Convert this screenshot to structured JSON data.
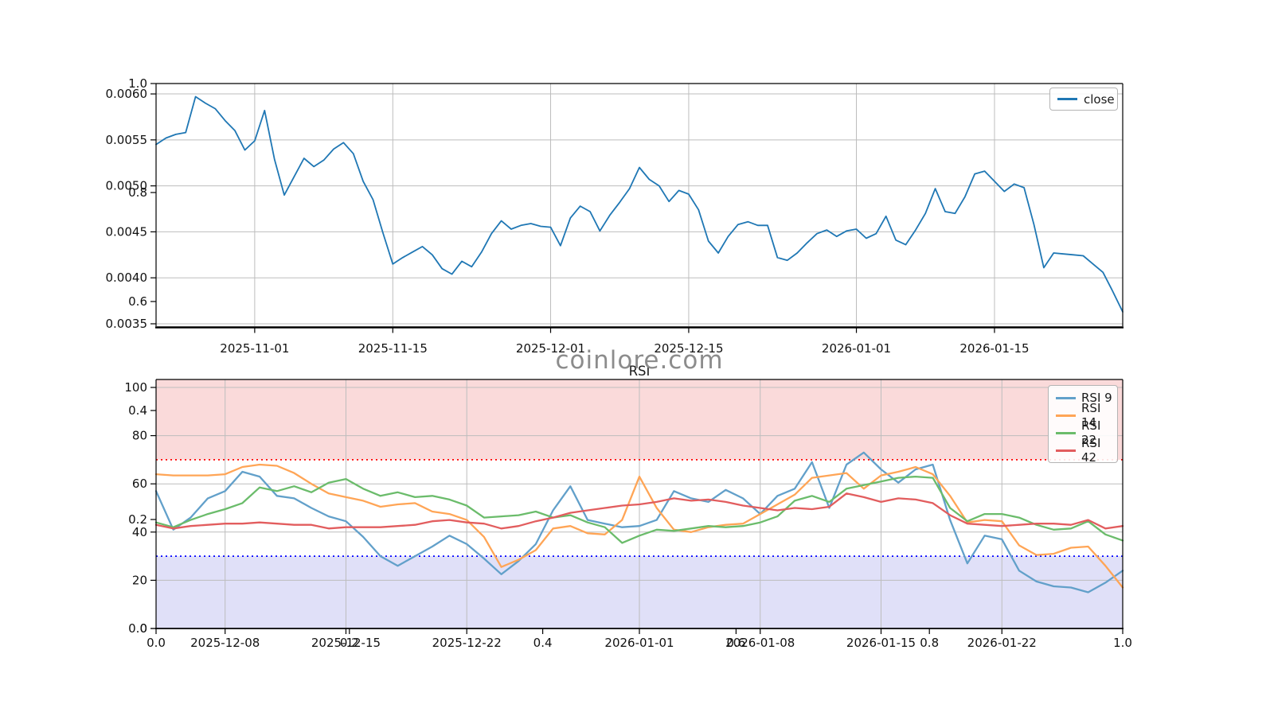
{
  "watermark": "coinlore.com",
  "legend_close_label": "close",
  "legend_rsi_labels": [
    "RSI 9",
    "RSI 14",
    "RSI 22",
    "RSI 42"
  ],
  "background_axis": {
    "x_tick_labels": [
      "0.0",
      "0.2",
      "0.4",
      "0.6",
      "0.8",
      "1.0"
    ],
    "y_tick_labels": [
      "1.0",
      "0.8",
      "0.6",
      "0.4",
      "0.2",
      "0.0"
    ]
  },
  "chart_data": [
    {
      "type": "line",
      "title": "",
      "xlabel": "",
      "ylabel": "",
      "grid": true,
      "legend_position": "upper right",
      "x_tick_labels": [
        "2025-11-01",
        "2025-11-15",
        "2025-12-01",
        "2025-12-15",
        "2026-01-01",
        "2026-01-15"
      ],
      "x_tick_indices": [
        10,
        24,
        40,
        54,
        71,
        85
      ],
      "x_range_dates": [
        "2025-10-22",
        "2026-01-28"
      ],
      "y_tick_labels": [
        "0.0060",
        "0.0055",
        "0.0050",
        "0.0045",
        "0.0040",
        "0.0035"
      ],
      "y_tick_values": [
        0.006,
        0.0055,
        0.005,
        0.0045,
        0.004,
        0.0035
      ],
      "ylim": [
        0.003474,
        0.006113
      ],
      "series": [
        {
          "name": "close",
          "color": "#1f77b4",
          "values": [
            0.00545,
            0.00552,
            0.00556,
            0.00558,
            0.00597,
            0.0059,
            0.00584,
            0.00571,
            0.0056,
            0.00539,
            0.00549,
            0.00582,
            0.00529,
            0.0049,
            0.0051,
            0.0053,
            0.00521,
            0.00528,
            0.0054,
            0.00547,
            0.00535,
            0.00505,
            0.00485,
            0.00449,
            0.00415,
            0.00422,
            0.00428,
            0.00434,
            0.00425,
            0.0041,
            0.00404,
            0.00418,
            0.00412,
            0.00428,
            0.00448,
            0.00462,
            0.00453,
            0.00457,
            0.00459,
            0.00456,
            0.00455,
            0.00435,
            0.00465,
            0.00478,
            0.00472,
            0.00451,
            0.00468,
            0.00482,
            0.00497,
            0.0052,
            0.00507,
            0.005,
            0.00483,
            0.00495,
            0.00491,
            0.00474,
            0.0044,
            0.00427,
            0.00445,
            0.00458,
            0.00461,
            0.00457,
            0.00457,
            0.00422,
            0.00419,
            0.00427,
            0.00438,
            0.00448,
            0.00452,
            0.00445,
            0.00451,
            0.00453,
            0.00443,
            0.00448,
            0.00467,
            0.00441,
            0.00436,
            0.00452,
            0.0047,
            0.00497,
            0.00472,
            0.0047,
            0.00488,
            0.00513,
            0.00516,
            0.00505,
            0.00494,
            0.00502,
            0.00498,
            0.00458,
            0.00411,
            0.00427,
            0.00426,
            0.00425,
            0.00424,
            0.00415,
            0.00406,
            0.00385,
            0.00363
          ]
        }
      ]
    },
    {
      "type": "line",
      "title": "RSI",
      "xlabel": "",
      "ylabel": "",
      "grid": true,
      "legend_position": "upper right",
      "x_tick_labels": [
        "2025-12-08",
        "2025-12-15",
        "2025-12-22",
        "2026-01-01",
        "2026-01-08",
        "2026-01-15",
        "2026-01-22"
      ],
      "x_tick_indices": [
        4,
        11,
        18,
        28,
        35,
        42,
        49
      ],
      "x_range_dates": [
        "2025-12-04",
        "2026-01-29"
      ],
      "y_tick_labels": [
        "100",
        "80",
        "60",
        "40",
        "20",
        "0"
      ],
      "y_tick_values": [
        100,
        80,
        60,
        40,
        20,
        0
      ],
      "ylim": [
        0,
        103.3
      ],
      "overbought_level": 70,
      "oversold_level": 30,
      "overbought_line_color": "#ff0000",
      "oversold_line_color": "#0000ff",
      "overbought_band_color": "#fadada",
      "oversold_band_color": "#e0e0f8",
      "series": [
        {
          "name": "RSI 9",
          "color": "#62a0ca",
          "values": [
            57,
            41,
            46,
            54,
            57,
            65,
            63,
            55,
            54,
            50,
            46.5,
            44.5,
            38,
            30,
            26,
            30,
            34,
            38.5,
            35,
            29,
            22.5,
            28,
            35,
            49,
            59,
            45,
            43.5,
            42,
            42.5,
            45,
            57,
            54,
            52.5,
            57.5,
            54,
            47.5,
            55,
            58,
            69,
            50,
            68,
            73,
            66,
            60.5,
            66,
            68,
            45,
            27,
            38.5,
            37,
            24,
            19.5,
            17.5,
            17,
            15,
            19,
            24
          ]
        },
        {
          "name": "RSI 14",
          "color": "#ffa556",
          "values": [
            64,
            63.5,
            63.5,
            63.5,
            64,
            67,
            68,
            67.5,
            64.5,
            60,
            56,
            54.5,
            53,
            50.5,
            51.5,
            52,
            48.5,
            47.5,
            45,
            38,
            25.5,
            28.5,
            32.5,
            41.5,
            42.5,
            39.5,
            39,
            45,
            63,
            50,
            41,
            40,
            42,
            43,
            43.5,
            47.5,
            51.5,
            55.5,
            62.5,
            63.5,
            64.5,
            58,
            63.5,
            65,
            67,
            64,
            55,
            44,
            45,
            44.5,
            34.5,
            30.5,
            31,
            33.5,
            34,
            26,
            17
          ]
        },
        {
          "name": "RSI 22",
          "color": "#6bbc6b",
          "values": [
            44,
            42,
            45,
            47.5,
            49.5,
            52,
            58.5,
            57,
            59,
            56.5,
            60.5,
            62,
            58,
            55,
            56.5,
            54.5,
            55,
            53.5,
            51,
            46,
            46.5,
            47,
            48.5,
            46,
            47,
            44,
            42,
            35.5,
            38.5,
            41,
            40.5,
            41.5,
            42.5,
            42,
            42.5,
            44,
            46.5,
            53,
            55,
            52.5,
            58,
            59.5,
            61,
            62.5,
            63,
            62.5,
            50,
            44.5,
            47.5,
            47.5,
            46,
            43,
            41,
            41.5,
            44.5,
            39,
            36.5
          ]
        },
        {
          "name": "RSI 42",
          "color": "#e25d5e",
          "values": [
            43,
            41.5,
            42.5,
            43,
            43.5,
            43.5,
            44,
            43.5,
            43,
            43,
            41.5,
            42,
            42,
            42,
            42.5,
            43,
            44.5,
            45,
            44,
            43.5,
            41.5,
            42.5,
            44.5,
            46,
            48,
            49,
            50,
            51,
            51.5,
            52.5,
            54,
            53,
            53.5,
            52.5,
            51,
            50,
            49,
            50,
            49.5,
            50.5,
            56,
            54.5,
            52.5,
            54,
            53.5,
            52,
            47,
            43.5,
            43,
            42.5,
            43,
            43.5,
            43.5,
            43,
            45,
            41.5,
            42.5
          ]
        }
      ]
    }
  ]
}
